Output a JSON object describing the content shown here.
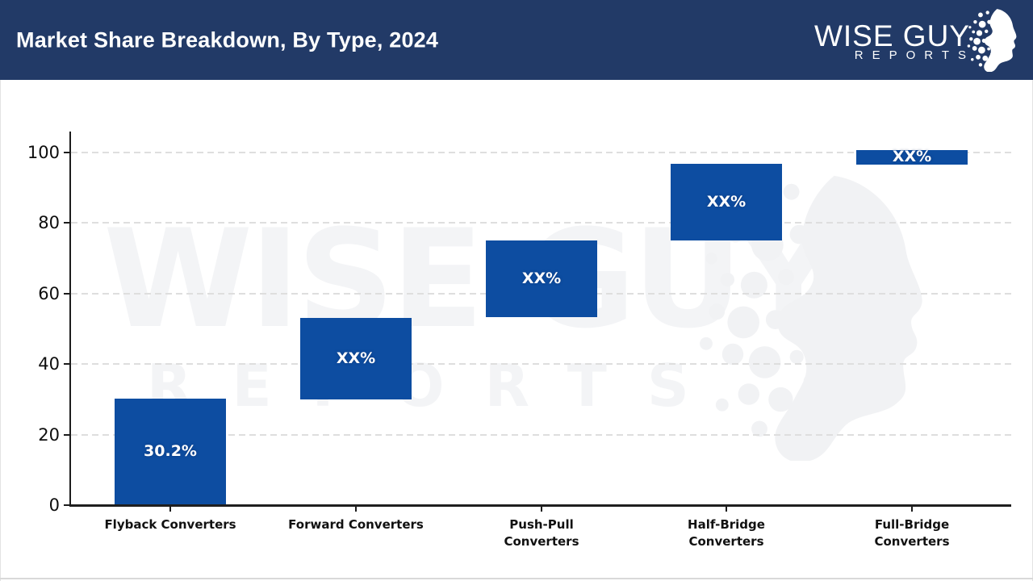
{
  "header": {
    "title": "Market Share Breakdown, By Type, 2024",
    "logo": {
      "name": "WISE GUY",
      "tagline": "REPORTS"
    }
  },
  "watermark": {
    "name": "WISE GUY",
    "tagline": "REPORTS"
  },
  "chart_data": {
    "type": "bar",
    "subtype": "waterfall-stacked-segments",
    "title": "Market Share Breakdown, By Type, 2024",
    "xlabel": "",
    "ylabel": "",
    "ylim": [
      0,
      105.8
    ],
    "yticks": [
      0,
      20,
      40,
      60,
      80,
      100
    ],
    "grid": "horizontal-dashed",
    "legend": "none",
    "bar_color": "#0d4da1",
    "value_label_color": "#ffffff",
    "categories": [
      "Flyback Converters",
      "Forward Converters",
      "Push-Pull\nConverters",
      "Half-Bridge\nConverters",
      "Full-Bridge\nConverters"
    ],
    "segments": [
      {
        "category": "Flyback Converters",
        "start": 0,
        "end": 30.2,
        "value_label": "30.2%"
      },
      {
        "category": "Forward Converters",
        "start": 30.0,
        "end": 53.1,
        "value_label": "XX%"
      },
      {
        "category": "Push-Pull Converters",
        "start": 53.3,
        "end": 75.0,
        "value_label": "XX%"
      },
      {
        "category": "Half-Bridge Converters",
        "start": 74.9,
        "end": 96.7,
        "value_label": "XX%"
      },
      {
        "category": "Full-Bridge Converters",
        "start": 96.5,
        "end": 100.6,
        "value_label": "XX%"
      }
    ]
  }
}
